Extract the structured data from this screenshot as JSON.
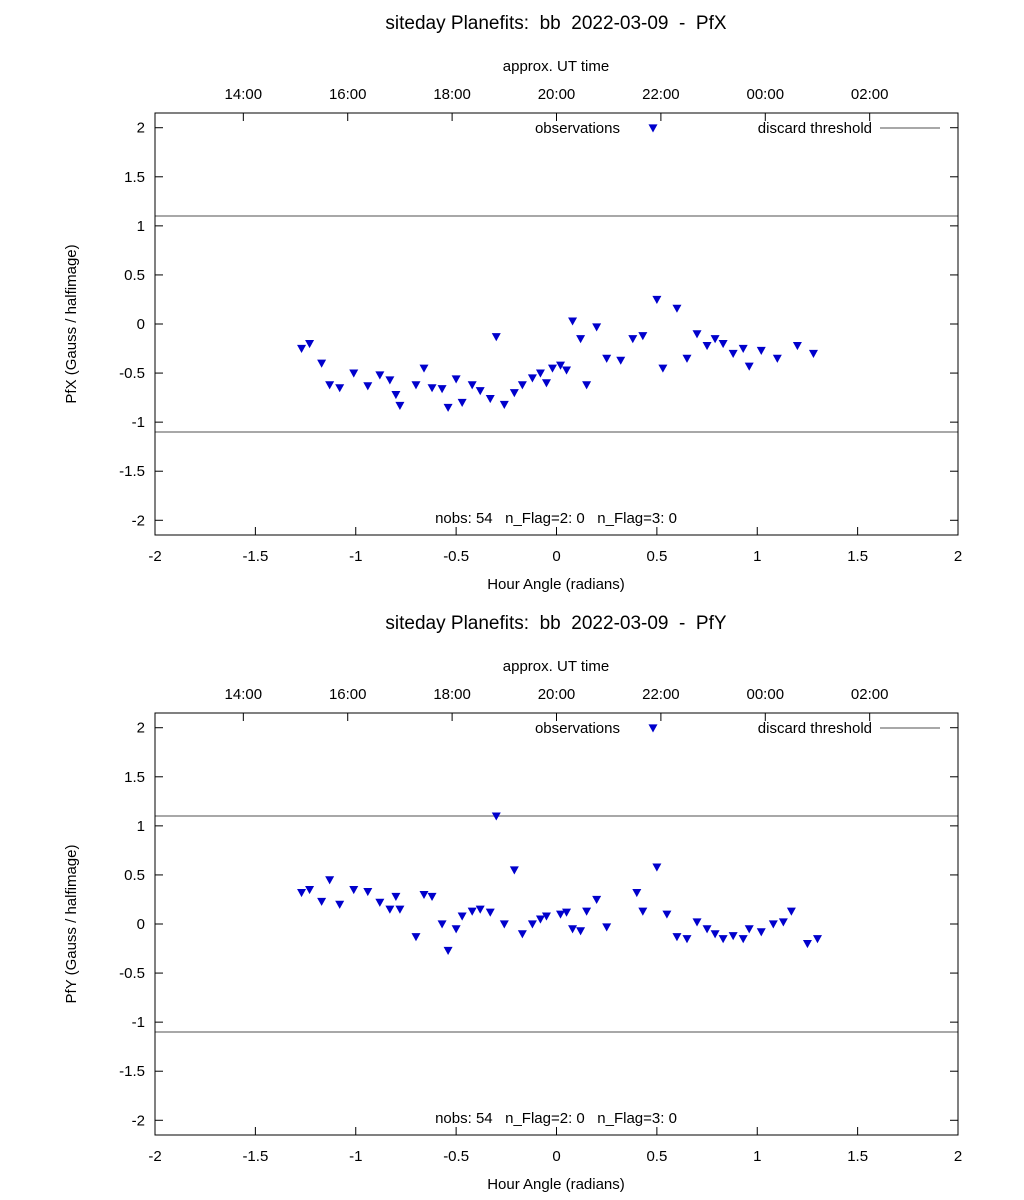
{
  "chart_data": [
    {
      "type": "scatter",
      "title": "siteday Planefits:  bb  2022-03-09  -  PfX",
      "top_axis_label": "approx. UT time",
      "xlabel": "Hour Angle (radians)",
      "ylabel": "PfX (Gauss / halfimage)",
      "xlim": [
        -2,
        2
      ],
      "ylim": [
        -2.15,
        2.15
      ],
      "x_ticks": [
        {
          "v": -2,
          "label": "-2"
        },
        {
          "v": -1.5,
          "label": "-1.5"
        },
        {
          "v": -1,
          "label": "-1"
        },
        {
          "v": -0.5,
          "label": "-0.5"
        },
        {
          "v": 0,
          "label": "0"
        },
        {
          "v": 0.5,
          "label": "0.5"
        },
        {
          "v": 1,
          "label": "1"
        },
        {
          "v": 1.5,
          "label": "1.5"
        },
        {
          "v": 2,
          "label": "2"
        }
      ],
      "y_ticks": [
        {
          "v": -2,
          "label": "-2"
        },
        {
          "v": -1.5,
          "label": "-1.5"
        },
        {
          "v": -1,
          "label": "-1"
        },
        {
          "v": -0.5,
          "label": "-0.5"
        },
        {
          "v": 0,
          "label": "0"
        },
        {
          "v": 0.5,
          "label": "0.5"
        },
        {
          "v": 1,
          "label": "1"
        },
        {
          "v": 1.5,
          "label": "1.5"
        },
        {
          "v": 2,
          "label": "2"
        }
      ],
      "ut_ticks": [
        {
          "v": -1.56,
          "label": "14:00"
        },
        {
          "v": -1.04,
          "label": "16:00"
        },
        {
          "v": -0.52,
          "label": "18:00"
        },
        {
          "v": 0.0,
          "label": "20:00"
        },
        {
          "v": 0.52,
          "label": "22:00"
        },
        {
          "v": 1.04,
          "label": "00:00"
        },
        {
          "v": 1.56,
          "label": "02:00"
        }
      ],
      "legend": {
        "observations_label": "observations",
        "threshold_label": "discard threshold",
        "position": "top-right-inside"
      },
      "discard_threshold": 1.1,
      "annotation": "nobs: 54   n_Flag=2: 0   n_Flag=3: 0",
      "colors": {
        "points": "#0000cc",
        "threshold": "#a8a8a8",
        "frame": "#000000"
      },
      "grid": "off",
      "series": [
        {
          "name": "observations",
          "marker": "triangle-down",
          "points": [
            [
              -1.27,
              -0.25
            ],
            [
              -1.23,
              -0.2
            ],
            [
              -1.17,
              -0.4
            ],
            [
              -1.13,
              -0.62
            ],
            [
              -1.08,
              -0.65
            ],
            [
              -1.01,
              -0.5
            ],
            [
              -0.94,
              -0.63
            ],
            [
              -0.88,
              -0.52
            ],
            [
              -0.83,
              -0.57
            ],
            [
              -0.8,
              -0.72
            ],
            [
              -0.78,
              -0.83
            ],
            [
              -0.7,
              -0.62
            ],
            [
              -0.66,
              -0.45
            ],
            [
              -0.62,
              -0.65
            ],
            [
              -0.57,
              -0.66
            ],
            [
              -0.54,
              -0.85
            ],
            [
              -0.5,
              -0.56
            ],
            [
              -0.47,
              -0.8
            ],
            [
              -0.42,
              -0.62
            ],
            [
              -0.38,
              -0.68
            ],
            [
              -0.33,
              -0.76
            ],
            [
              -0.3,
              -0.13
            ],
            [
              -0.26,
              -0.82
            ],
            [
              -0.21,
              -0.7
            ],
            [
              -0.17,
              -0.62
            ],
            [
              -0.12,
              -0.55
            ],
            [
              -0.08,
              -0.5
            ],
            [
              -0.05,
              -0.6
            ],
            [
              -0.02,
              -0.45
            ],
            [
              0.02,
              -0.42
            ],
            [
              0.05,
              -0.47
            ],
            [
              0.08,
              0.03
            ],
            [
              0.12,
              -0.15
            ],
            [
              0.15,
              -0.62
            ],
            [
              0.2,
              -0.03
            ],
            [
              0.25,
              -0.35
            ],
            [
              0.32,
              -0.37
            ],
            [
              0.38,
              -0.15
            ],
            [
              0.43,
              -0.12
            ],
            [
              0.5,
              0.25
            ],
            [
              0.53,
              -0.45
            ],
            [
              0.6,
              0.16
            ],
            [
              0.65,
              -0.35
            ],
            [
              0.7,
              -0.1
            ],
            [
              0.75,
              -0.22
            ],
            [
              0.79,
              -0.15
            ],
            [
              0.83,
              -0.2
            ],
            [
              0.88,
              -0.3
            ],
            [
              0.93,
              -0.25
            ],
            [
              0.96,
              -0.43
            ],
            [
              1.02,
              -0.27
            ],
            [
              1.1,
              -0.35
            ],
            [
              1.2,
              -0.22
            ],
            [
              1.28,
              -0.3
            ]
          ]
        }
      ]
    },
    {
      "type": "scatter",
      "title": "siteday Planefits:  bb  2022-03-09  -  PfY",
      "top_axis_label": "approx. UT time",
      "xlabel": "Hour Angle (radians)",
      "ylabel": "PfY (Gauss / halfimage)",
      "xlim": [
        -2,
        2
      ],
      "ylim": [
        -2.15,
        2.15
      ],
      "x_ticks": [
        {
          "v": -2,
          "label": "-2"
        },
        {
          "v": -1.5,
          "label": "-1.5"
        },
        {
          "v": -1,
          "label": "-1"
        },
        {
          "v": -0.5,
          "label": "-0.5"
        },
        {
          "v": 0,
          "label": "0"
        },
        {
          "v": 0.5,
          "label": "0.5"
        },
        {
          "v": 1,
          "label": "1"
        },
        {
          "v": 1.5,
          "label": "1.5"
        },
        {
          "v": 2,
          "label": "2"
        }
      ],
      "y_ticks": [
        {
          "v": -2,
          "label": "-2"
        },
        {
          "v": -1.5,
          "label": "-1.5"
        },
        {
          "v": -1,
          "label": "-1"
        },
        {
          "v": -0.5,
          "label": "-0.5"
        },
        {
          "v": 0,
          "label": "0"
        },
        {
          "v": 0.5,
          "label": "0.5"
        },
        {
          "v": 1,
          "label": "1"
        },
        {
          "v": 1.5,
          "label": "1.5"
        },
        {
          "v": 2,
          "label": "2"
        }
      ],
      "ut_ticks": [
        {
          "v": -1.56,
          "label": "14:00"
        },
        {
          "v": -1.04,
          "label": "16:00"
        },
        {
          "v": -0.52,
          "label": "18:00"
        },
        {
          "v": 0.0,
          "label": "20:00"
        },
        {
          "v": 0.52,
          "label": "22:00"
        },
        {
          "v": 1.04,
          "label": "00:00"
        },
        {
          "v": 1.56,
          "label": "02:00"
        }
      ],
      "legend": {
        "observations_label": "observations",
        "threshold_label": "discard threshold",
        "position": "top-right-inside"
      },
      "discard_threshold": 1.1,
      "annotation": "nobs: 54   n_Flag=2: 0   n_Flag=3: 0",
      "colors": {
        "points": "#0000cc",
        "threshold": "#a8a8a8",
        "frame": "#000000"
      },
      "grid": "off",
      "series": [
        {
          "name": "observations",
          "marker": "triangle-down",
          "points": [
            [
              -1.27,
              0.32
            ],
            [
              -1.23,
              0.35
            ],
            [
              -1.17,
              0.23
            ],
            [
              -1.13,
              0.45
            ],
            [
              -1.08,
              0.2
            ],
            [
              -1.01,
              0.35
            ],
            [
              -0.94,
              0.33
            ],
            [
              -0.88,
              0.22
            ],
            [
              -0.83,
              0.15
            ],
            [
              -0.8,
              0.28
            ],
            [
              -0.78,
              0.15
            ],
            [
              -0.7,
              -0.13
            ],
            [
              -0.66,
              0.3
            ],
            [
              -0.62,
              0.28
            ],
            [
              -0.57,
              0.0
            ],
            [
              -0.54,
              -0.27
            ],
            [
              -0.5,
              -0.05
            ],
            [
              -0.47,
              0.08
            ],
            [
              -0.42,
              0.13
            ],
            [
              -0.38,
              0.15
            ],
            [
              -0.33,
              0.12
            ],
            [
              -0.3,
              1.1
            ],
            [
              -0.26,
              0.0
            ],
            [
              -0.21,
              0.55
            ],
            [
              -0.17,
              -0.1
            ],
            [
              -0.12,
              0.0
            ],
            [
              -0.08,
              0.05
            ],
            [
              -0.05,
              0.08
            ],
            [
              0.02,
              0.1
            ],
            [
              0.05,
              0.12
            ],
            [
              0.08,
              -0.05
            ],
            [
              0.12,
              -0.07
            ],
            [
              0.15,
              0.13
            ],
            [
              0.2,
              0.25
            ],
            [
              0.25,
              -0.03
            ],
            [
              0.4,
              0.32
            ],
            [
              0.43,
              0.13
            ],
            [
              0.5,
              0.58
            ],
            [
              0.55,
              0.1
            ],
            [
              0.6,
              -0.13
            ],
            [
              0.65,
              -0.15
            ],
            [
              0.7,
              0.02
            ],
            [
              0.75,
              -0.05
            ],
            [
              0.79,
              -0.1
            ],
            [
              0.83,
              -0.15
            ],
            [
              0.88,
              -0.12
            ],
            [
              0.93,
              -0.15
            ],
            [
              0.96,
              -0.05
            ],
            [
              1.02,
              -0.08
            ],
            [
              1.08,
              0.0
            ],
            [
              1.13,
              0.02
            ],
            [
              1.17,
              0.13
            ],
            [
              1.25,
              -0.2
            ],
            [
              1.3,
              -0.15
            ]
          ]
        }
      ]
    }
  ]
}
